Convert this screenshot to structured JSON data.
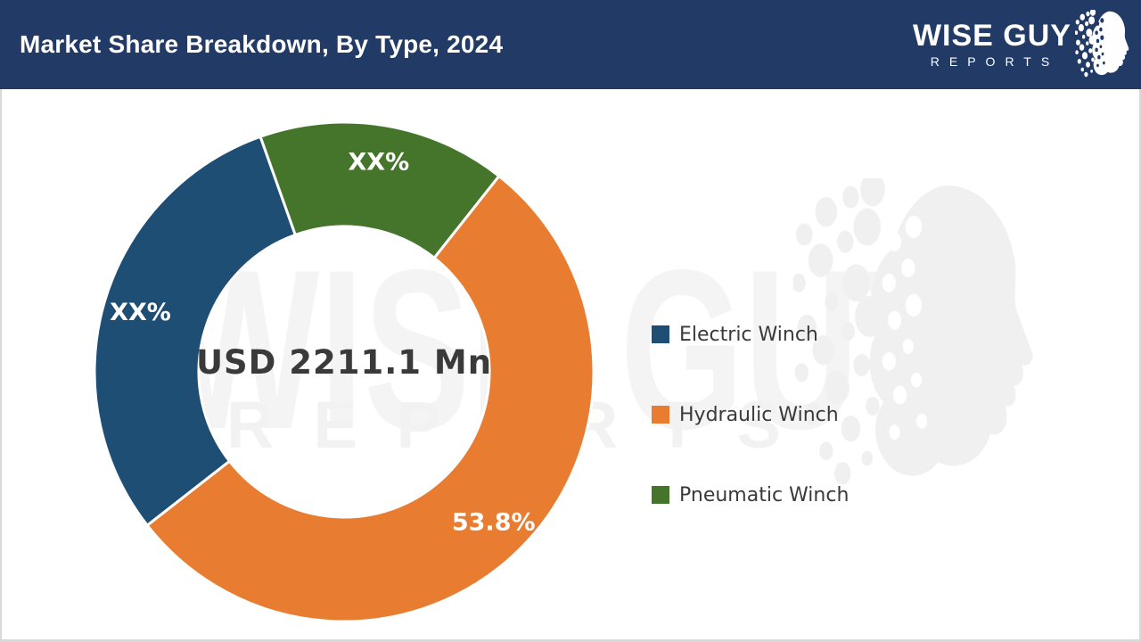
{
  "header": {
    "title": "Market Share Breakdown, By Type, 2024",
    "logo": {
      "line1": "WISE GUY",
      "line2": "REPORTS"
    }
  },
  "chart_data": {
    "type": "pie",
    "subtype": "donut",
    "title": "Market Share Breakdown, By Type, 2024",
    "center_label": "USD 2211.1 Mn",
    "unit": "USD Mn",
    "total_value_usd_mn": 2211.1,
    "start_angle_deg": 109.6,
    "direction": "counterclockwise",
    "legend_position": "right",
    "slices": [
      {
        "name": "Electric Winch",
        "label": "XX%",
        "value_pct": 30.1,
        "color": "#1F4E74"
      },
      {
        "name": "Hydraulic Winch",
        "label": "53.8%",
        "value_pct": 53.8,
        "color": "#E87D31"
      },
      {
        "name": "Pneumatic Winch",
        "label": "XX%",
        "value_pct": 16.1,
        "color": "#45752B"
      }
    ]
  },
  "watermark": {
    "line1": "WISE GUY",
    "line2": "REPORTS"
  },
  "colors": {
    "header_bg": "#223A66",
    "body_border": "#D9D9D9",
    "text_dark": "#3A3A3A",
    "slice_label_text": "#FFFFFF",
    "watermark": "#F2F2F2"
  }
}
